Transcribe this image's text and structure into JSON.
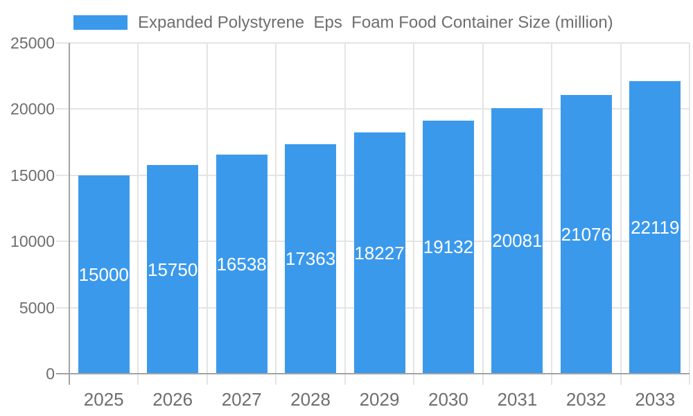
{
  "legend": {
    "label": "Expanded Polystyrene  Eps  Foam Food Container Size (million)"
  },
  "colors": {
    "bar": "#3B99EC",
    "bar_label_text": "#ffffff",
    "axis_text": "#6e6e6e",
    "grid_line": "#e4e4e4",
    "axis_line": "#a3a3a3",
    "background": "#ffffff"
  },
  "chart_data": {
    "type": "bar",
    "title": "",
    "categories": [
      "2025",
      "2026",
      "2027",
      "2028",
      "2029",
      "2030",
      "2031",
      "2032",
      "2033"
    ],
    "series": [
      {
        "name": "Expanded Polystyrene  Eps  Foam Food Container Size (million)",
        "values": [
          15000,
          15750,
          16538,
          17363,
          18227,
          19132,
          20081,
          21076,
          22119
        ]
      }
    ],
    "bar_labels": [
      "15000",
      "15750",
      "16538",
      "17363",
      "18227",
      "19132",
      "20081",
      "21076",
      "22119"
    ],
    "xlabel": "",
    "ylabel": "",
    "ylim": [
      0,
      25000
    ],
    "yticks": [
      0,
      5000,
      10000,
      15000,
      20000,
      25000
    ],
    "grid": true,
    "legend_position": "top-left",
    "value_label_position": "center-of-bar"
  }
}
